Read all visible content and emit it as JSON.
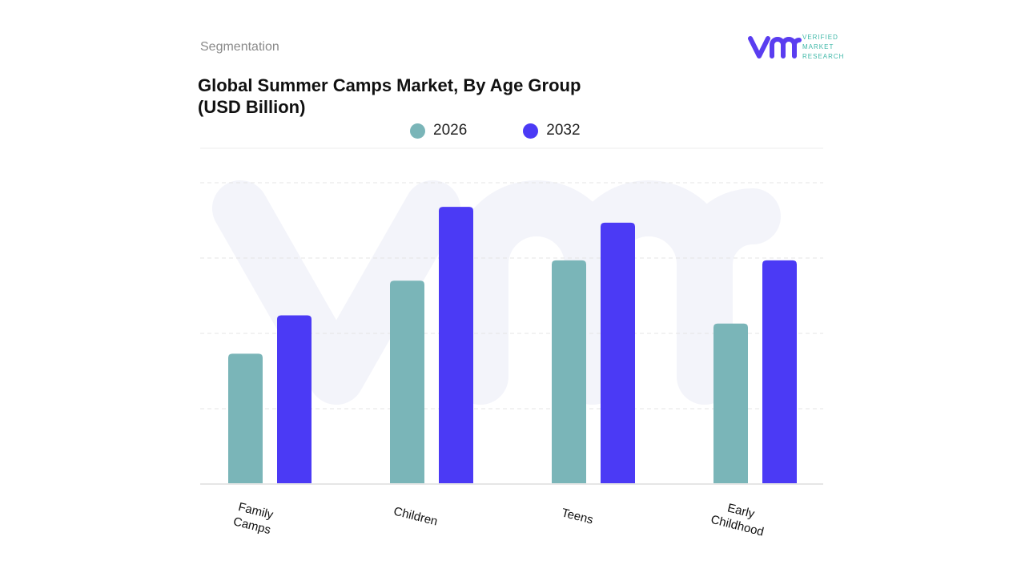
{
  "header": {
    "segment_label": "Segmentation",
    "title": "Global Summer Camps Market, By Age Group (USD Billion)"
  },
  "logo": {
    "text_lines": [
      "VERIFIED",
      "MARKET",
      "RESEARCH"
    ],
    "mark": "vmr"
  },
  "colors": {
    "series_2026": "#7ab5b8",
    "series_2032": "#4b3af5",
    "logo_mark": "#5a3df0",
    "logo_text": "#3fb8a8"
  },
  "chart_data": {
    "type": "bar",
    "title": "Global Summer Camps Market, By Age Group (USD Billion)",
    "categories": [
      "Family Camps",
      "Children",
      "Teens",
      "Early Childhood"
    ],
    "series": [
      {
        "name": "2026",
        "values": [
          1.73,
          2.7,
          2.97,
          2.13
        ]
      },
      {
        "name": "2032",
        "values": [
          2.24,
          3.68,
          3.47,
          2.97
        ]
      }
    ],
    "ylim": [
      0,
      4
    ],
    "grid": true,
    "y_axis_labels_shown": false,
    "legend_placement": "top-center",
    "xlabel": "",
    "ylabel": ""
  }
}
